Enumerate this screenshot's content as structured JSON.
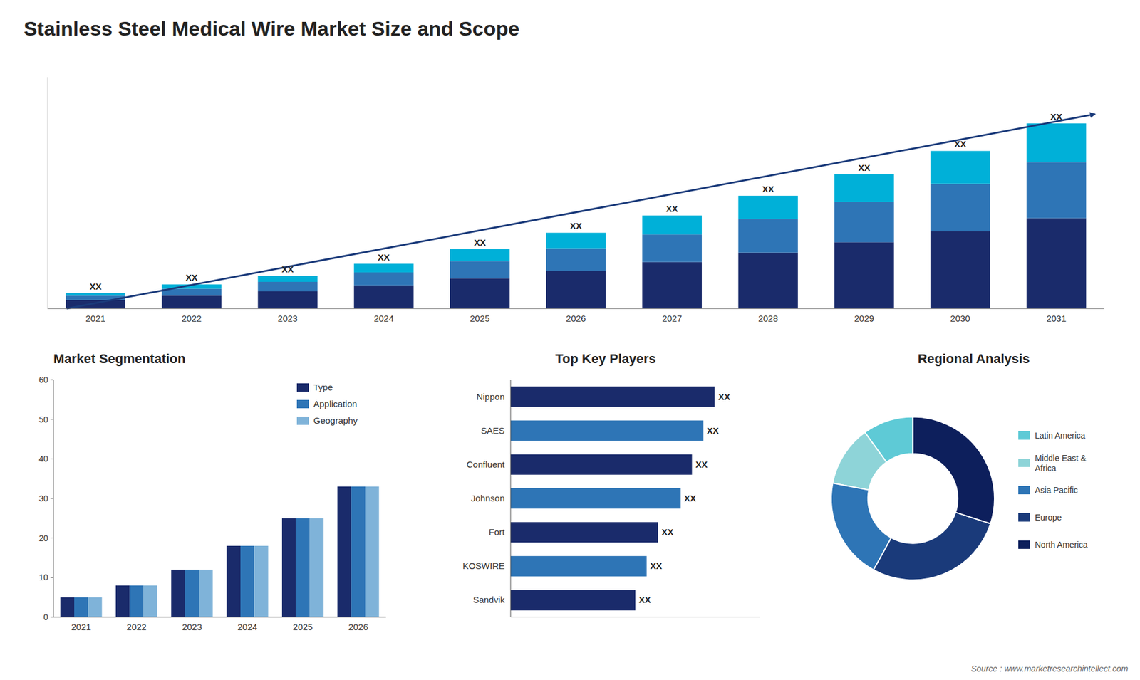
{
  "title": "Stainless Steel Medical Wire Market Size and Scope",
  "annotations": [
    "Source : www.marketresearchintellect.com"
  ],
  "chart_data": [
    {
      "type": "bar",
      "stacked": true,
      "categories": [
        "2021",
        "2022",
        "2023",
        "2024",
        "2025",
        "2026",
        "2027",
        "2028",
        "2029",
        "2030",
        "2031"
      ],
      "series": [
        {
          "color": "#1a2b6b",
          "values": [
            1,
            1.5,
            2,
            2.7,
            3.5,
            4.4,
            5.4,
            6.5,
            7.7,
            9,
            10.5
          ]
        },
        {
          "color": "#2e75b6",
          "values": [
            0.5,
            0.8,
            1.1,
            1.5,
            2.0,
            2.6,
            3.2,
            3.9,
            4.7,
            5.5,
            6.5
          ]
        },
        {
          "color": "#00b0d8",
          "values": [
            0.3,
            0.5,
            0.7,
            1.0,
            1.4,
            1.8,
            2.2,
            2.7,
            3.2,
            3.8,
            4.5
          ],
          "value_labels": [
            "XX",
            "XX",
            "XX",
            "XX",
            "XX",
            "XX",
            "XX",
            "XX",
            "XX",
            "XX",
            "XX"
          ]
        }
      ],
      "ylim": [
        0,
        26.875
      ],
      "tick_labels": "x",
      "grid": false
    },
    {
      "type": "bar",
      "title": "Market Segmentation",
      "categories": [
        "2021",
        "2022",
        "2023",
        "2024",
        "2025",
        "2026"
      ],
      "series": [
        {
          "name": "Type",
          "color": "#1a2b6b",
          "values": [
            5,
            8,
            12,
            18,
            25,
            33
          ]
        },
        {
          "name": "Application",
          "color": "#2e75b6",
          "values": [
            5,
            8,
            12,
            18,
            25,
            33
          ]
        },
        {
          "name": "Geography",
          "color": "#7fb3d9",
          "values": [
            5,
            8,
            12,
            18,
            25,
            33
          ]
        }
      ],
      "ylim": [
        0,
        60
      ],
      "yticks": [
        0,
        10,
        20,
        30,
        40,
        50,
        60
      ],
      "legend": "upper right",
      "grid": false
    },
    {
      "type": "bar",
      "orientation": "horizontal",
      "title": "Top Key Players",
      "categories": [
        "Nippon",
        "SAES",
        "Confluent",
        "Johnson",
        "Fort",
        "KOSWIRE",
        "Sandvik"
      ],
      "values": [
        9,
        8.5,
        8,
        7.5,
        6.5,
        6,
        5.5
      ],
      "colors": [
        "#1a2b6b",
        "#2e75b6",
        "#1a2b6b",
        "#2e75b6",
        "#1a2b6b",
        "#2e75b6",
        "#1a2b6b"
      ],
      "value_labels": [
        "XX",
        "XX",
        "XX",
        "XX",
        "XX",
        "XX",
        "XX"
      ],
      "xlim": [
        0,
        11
      ],
      "tick_labels": "y",
      "grid": false
    },
    {
      "type": "donut",
      "title": "Regional Analysis",
      "categories": [
        "Latin America",
        "Middle East &\nAfrica",
        "Asia Pacific",
        "Europe",
        "North America"
      ],
      "values": [
        10,
        12,
        20,
        28,
        30
      ],
      "colors": [
        "#5ecad6",
        "#8ed4d8",
        "#2e75b6",
        "#1a3a7a",
        "#0d1f5c"
      ],
      "legend": "right"
    }
  ]
}
